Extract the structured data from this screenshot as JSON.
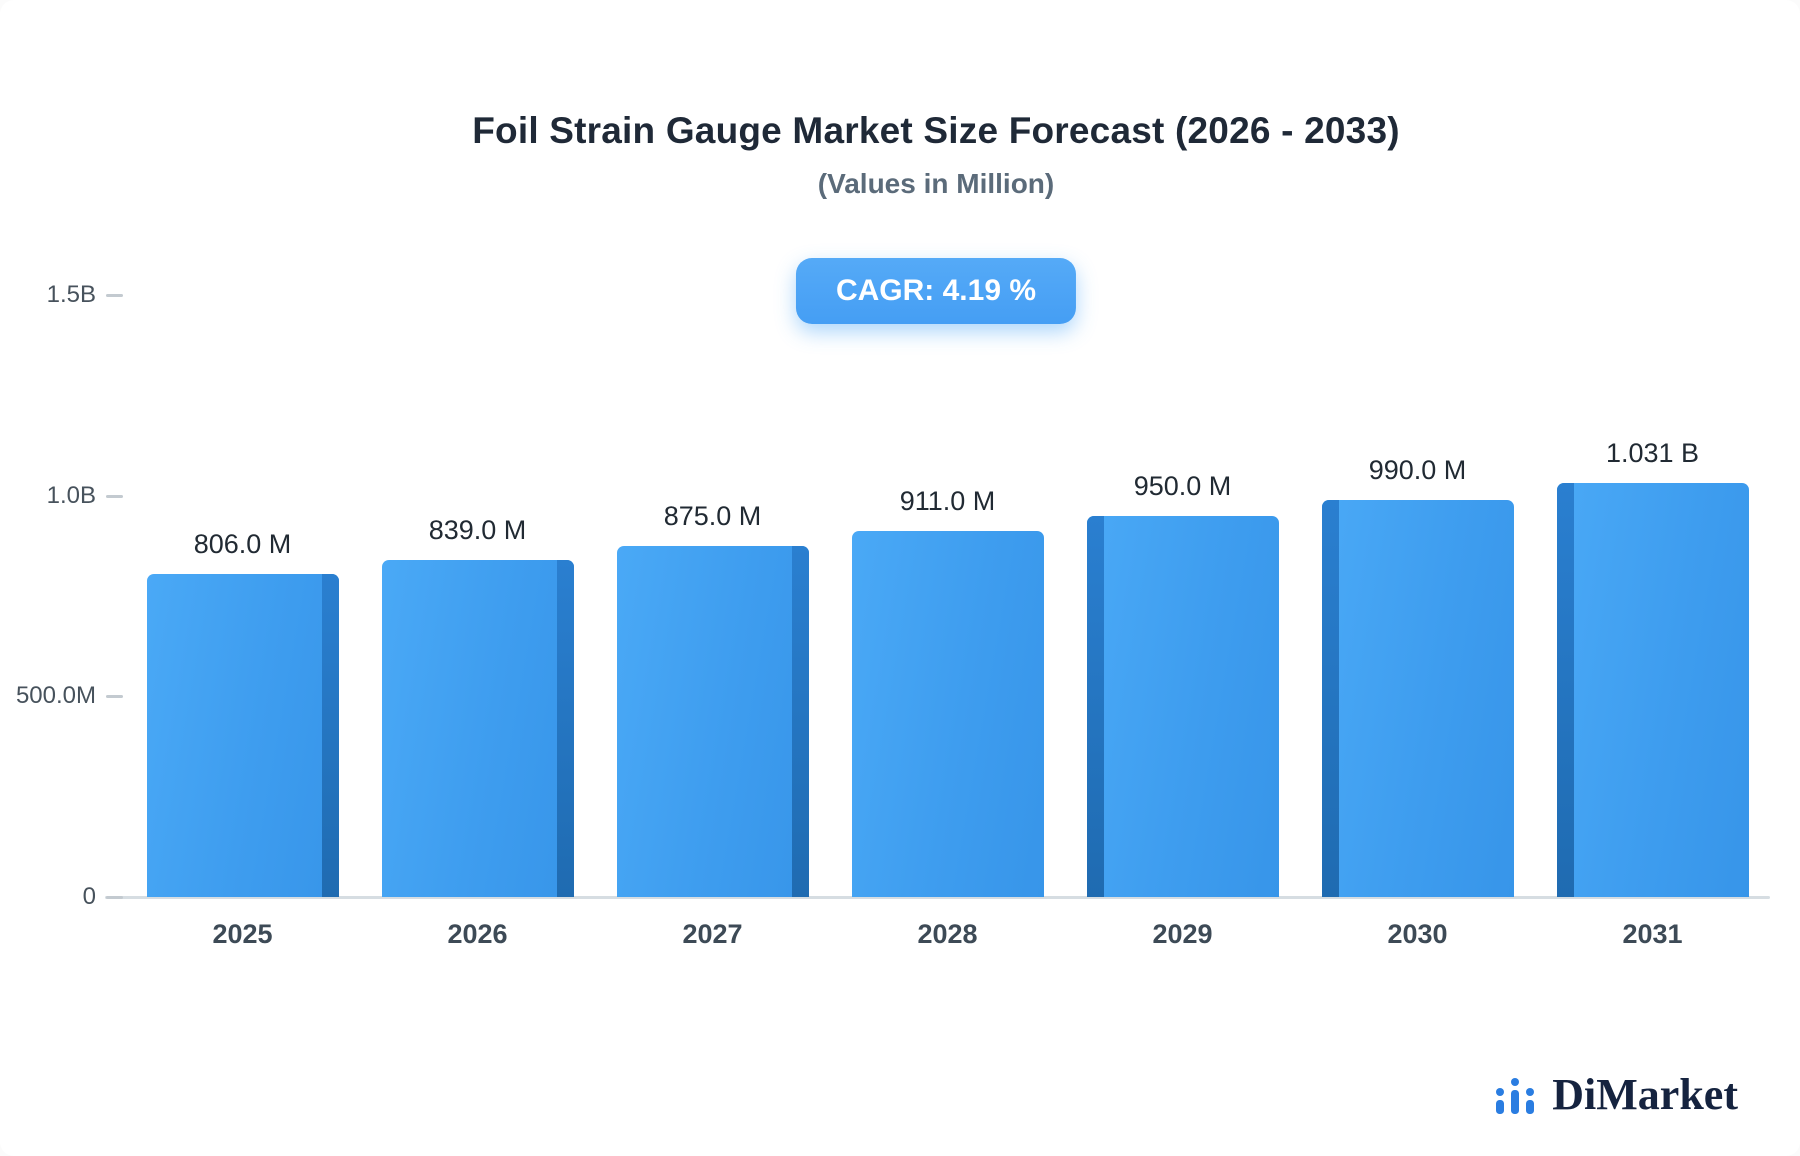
{
  "title": "Foil Strain Gauge Market Size Forecast (2026 - 2033)",
  "subtitle": "(Values in Million)",
  "cagr_badge": "CAGR: 4.19 %",
  "brand": {
    "name": "DiMarket"
  },
  "colors": {
    "bar_main": "#3e9def",
    "bar_side": "#2277c4",
    "badge": "#4aa3f6",
    "title_text": "#1f2937",
    "subtitle_text": "#5b6b7a",
    "axis_line": "#d6dde2",
    "brand_blue": "#2a7de1",
    "brand_navy": "#15233f"
  },
  "chart_data": {
    "type": "bar",
    "title": "Foil Strain Gauge Market Size Forecast (2026 - 2033)",
    "subtitle": "(Values in Million)",
    "annotation": "CAGR: 4.19 %",
    "categories": [
      "2025",
      "2026",
      "2027",
      "2028",
      "2029",
      "2030",
      "2031"
    ],
    "values": [
      806,
      839,
      875,
      911,
      950,
      990,
      1031
    ],
    "value_labels": [
      "806.0 M",
      "839.0 M",
      "875.0 M",
      "911.0 M",
      "950.0 M",
      "990.0 M",
      "1.031 B"
    ],
    "xlabel": "",
    "ylabel": "",
    "ylim": [
      0,
      1500
    ],
    "yticks": [
      {
        "value": 1500,
        "label": "1.5B"
      },
      {
        "value": 1000,
        "label": "1.0B"
      },
      {
        "value": 500,
        "label": "500.0M"
      },
      {
        "value": 0,
        "label": "0"
      }
    ],
    "grid": false,
    "legend": false,
    "style_hint": "pseudo-3d blue bars, rounded tops, darker side face toward chart center"
  }
}
